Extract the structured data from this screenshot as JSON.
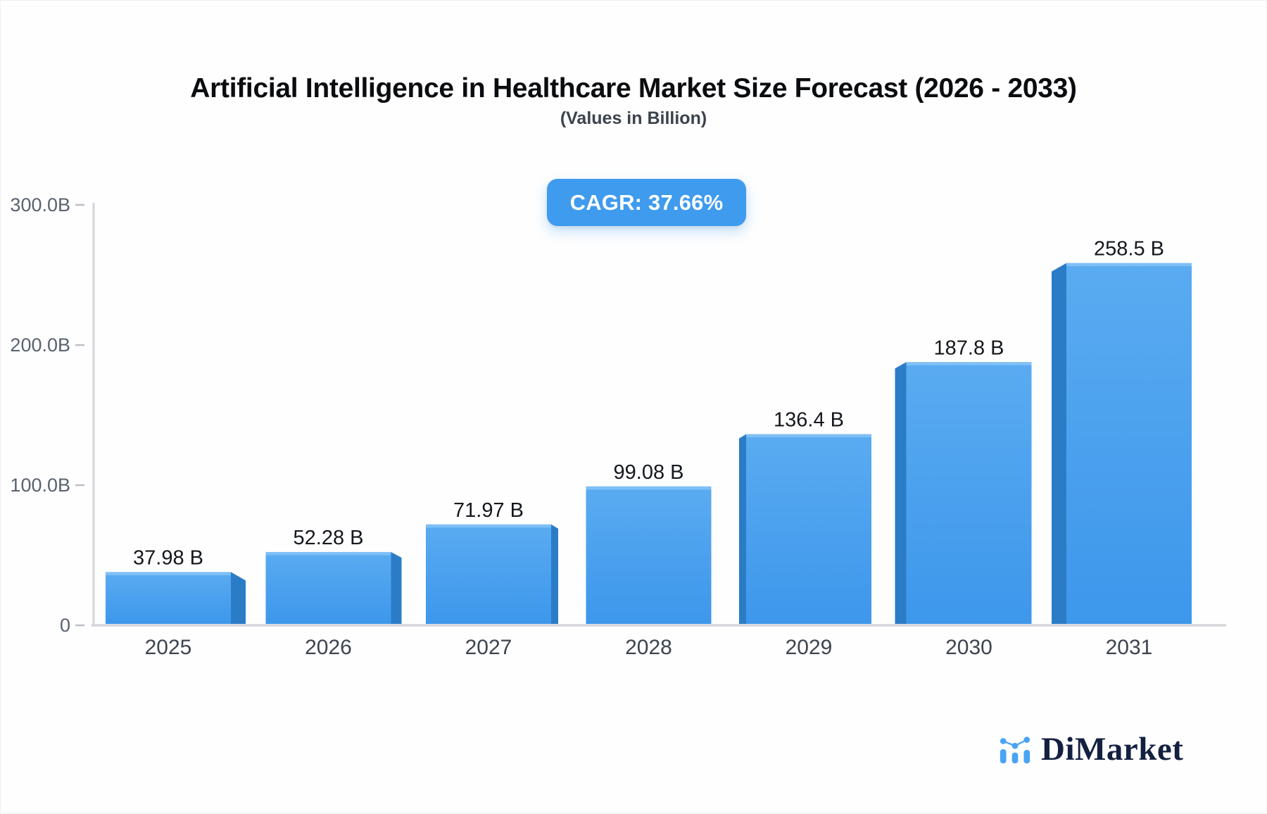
{
  "title": "Artificial Intelligence in Healthcare Market Size Forecast (2026 - 2033)",
  "subtitle": "(Values in Billion)",
  "cagr_badge": "CAGR: 37.66%",
  "brand": {
    "name": "DiMarket"
  },
  "chart_data": {
    "type": "bar",
    "title": "Artificial Intelligence in Healthcare Market Size Forecast (2026 - 2033)",
    "subtitle": "(Values in Billion)",
    "cagr": "37.66%",
    "categories": [
      "2025",
      "2026",
      "2027",
      "2028",
      "2029",
      "2030",
      "2031"
    ],
    "values": [
      37.98,
      52.28,
      71.97,
      99.08,
      136.4,
      187.8,
      258.5
    ],
    "bar_labels": [
      "37.98 B",
      "52.28 B",
      "71.97 B",
      "99.08 B",
      "136.4 B",
      "187.8 B",
      "258.5 B"
    ],
    "y_axis": {
      "min": 0,
      "max": 300,
      "ticks": [
        {
          "v": 0,
          "label": "0"
        },
        {
          "v": 100,
          "label": "100.0B"
        },
        {
          "v": 200,
          "label": "200.0B"
        },
        {
          "v": 300,
          "label": "300.0B"
        }
      ]
    },
    "grid": false,
    "legend": false,
    "style_3d": true,
    "colors": {
      "bar_top": "#5aabf1",
      "bar_bottom": "#3d97eb",
      "bar_side": "#2b7cc6",
      "bar_highlight": "#82c1f6",
      "axis_line": "#d5d6db",
      "tick_dash": "#bcc0c8",
      "tick_text": "#5a6270",
      "category_text": "#3d4450",
      "value_text": "#15181d",
      "badge_bg": "#3e9bee",
      "badge_text": "#ffffff",
      "logo_blue": "#4aa3f5",
      "logo_navy": "#142040"
    }
  }
}
